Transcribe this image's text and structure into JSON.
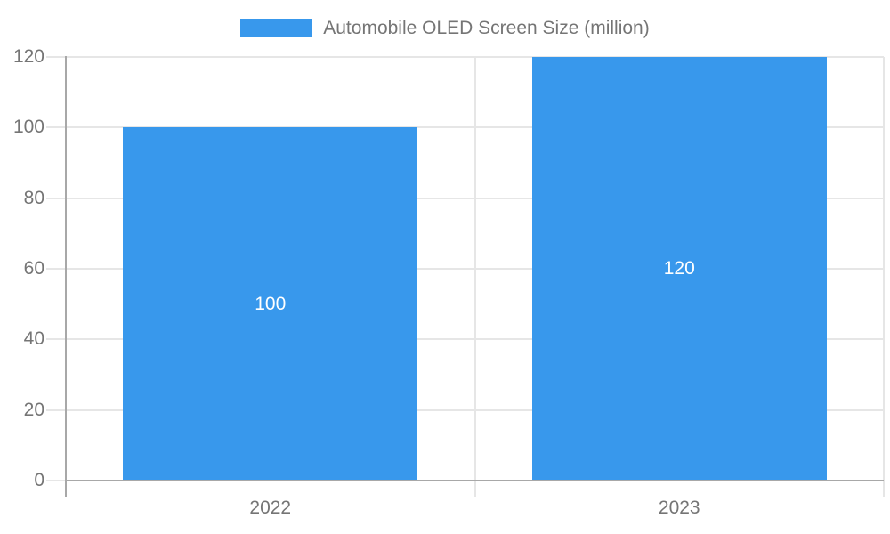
{
  "legend": {
    "label": "Automobile OLED Screen Size (million)"
  },
  "colors": {
    "bar": "#3898EC",
    "grid": "#e6e6e6",
    "axis": "#a8a8a8",
    "text": "#757575",
    "bar_label": "#ffffff",
    "background": "#ffffff"
  },
  "chart_data": {
    "type": "bar",
    "title": "Automobile OLED Screen Size (million)",
    "categories": [
      "2022",
      "2023"
    ],
    "values": [
      100,
      120
    ],
    "value_labels": [
      "100",
      "120"
    ],
    "xlabel": "",
    "ylabel": "",
    "ylim": [
      0,
      120
    ],
    "yticks": [
      0,
      20,
      40,
      60,
      80,
      100,
      120
    ],
    "grid": true,
    "legend_position": "top-center",
    "bar_label_position": "inside-center"
  }
}
